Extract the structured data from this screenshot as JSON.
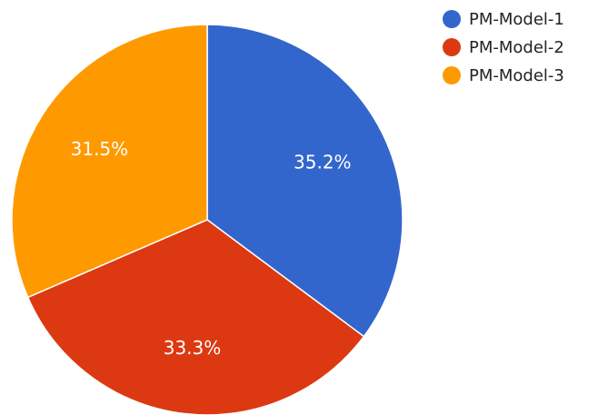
{
  "chart_data": {
    "type": "pie",
    "title": "",
    "categories": [
      "PM-Model-1",
      "PM-Model-2",
      "PM-Model-3"
    ],
    "values": [
      35.2,
      33.3,
      31.5
    ],
    "labels": [
      "35.2%",
      "33.3%",
      "31.5%"
    ],
    "colors": [
      "#3366cc",
      "#dc3912",
      "#ff9900"
    ],
    "start_angle_deg": 0,
    "direction": "clockwise",
    "legend_position": "top-right",
    "series": [
      {
        "name": "PM-Model-1",
        "value": 35.2,
        "color": "#3366cc"
      },
      {
        "name": "PM-Model-2",
        "value": 33.3,
        "color": "#dc3912"
      },
      {
        "name": "PM-Model-3",
        "value": 31.5,
        "color": "#ff9900"
      }
    ]
  }
}
